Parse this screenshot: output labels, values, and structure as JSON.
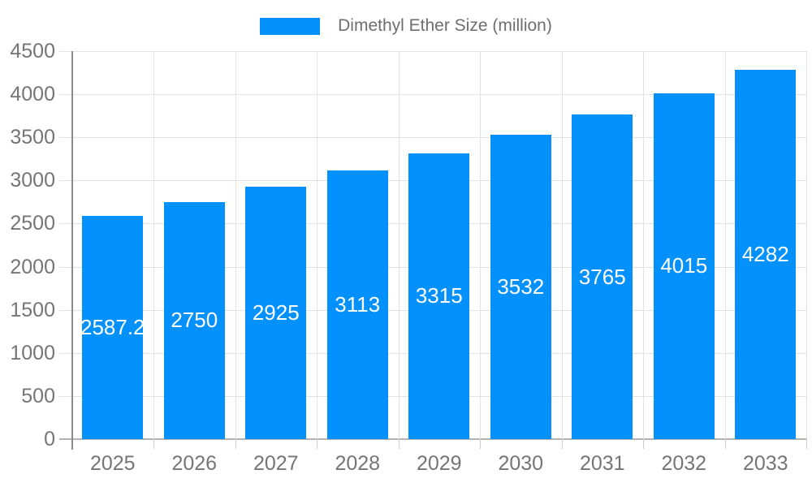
{
  "chart_data": {
    "type": "bar",
    "title": "Dimethyl Ether Size (million)",
    "legend": {
      "label": "Dimethyl Ether Size (million)",
      "position": "top-center"
    },
    "categories": [
      "2025",
      "2026",
      "2027",
      "2028",
      "2029",
      "2030",
      "2031",
      "2032",
      "2033"
    ],
    "values": [
      2587.2,
      2750,
      2925,
      3113,
      3315,
      3532,
      3765,
      4015,
      4282
    ],
    "value_labels": [
      "2587.2",
      "2750",
      "2925",
      "3113",
      "3315",
      "3532",
      "3765",
      "4015",
      "4282"
    ],
    "xlabel": "",
    "ylabel": "",
    "ylim": [
      0,
      4500
    ],
    "ytick_step": 500,
    "ytick_labels": [
      "0",
      "500",
      "1000",
      "1500",
      "2000",
      "2500",
      "3000",
      "3500",
      "4000",
      "4500"
    ],
    "grid": true,
    "colors": {
      "bar": "#0591fb",
      "bar_label": "#ffffff",
      "grid": "#e2e2e2",
      "y_axis": "#8c8c8c",
      "x_axis": "#b3b3b3",
      "x_tick": "#cfcfcf",
      "tick_text": "#757575",
      "legend_text": "#6e6e6e",
      "background": "#ffffff"
    }
  }
}
